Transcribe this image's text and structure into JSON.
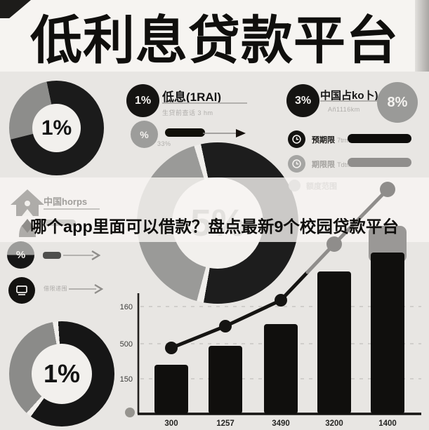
{
  "header": {
    "title": "低利息贷款平台"
  },
  "caption": {
    "text": "哪个app里面可以借款？盘点最新9个校园贷款平台"
  },
  "colors": {
    "ink": "#141414",
    "gray": "#8f8f8d",
    "light_gray": "#c9c7c4",
    "background": "#e8e6e3",
    "panel": "#f6f4f1"
  },
  "donuts": {
    "top_left": {
      "value": "1%"
    },
    "center": {
      "value": "5%"
    },
    "bottom_left": {
      "value": "1%"
    }
  },
  "low_interest": {
    "badge": "1%",
    "title": "低息(1RAl)",
    "subtitle": "生贷前查话 3 hm",
    "percent_badge": "%",
    "bar_note": "33%"
  },
  "china": {
    "badge": "3%",
    "title": "中国占ko卜)",
    "subtitle": "Añ1116km",
    "side_badge": "8%",
    "rows": [
      {
        "icon": "clock-icon",
        "label": "预期限",
        "suffix": "7trm"
      },
      {
        "icon": "clock-icon",
        "label": "期限限",
        "suffix": "Tdtm"
      },
      {
        "icon": "dot-icon",
        "label": "额度范围",
        "suffix": ""
      }
    ]
  },
  "home": {
    "title": "中国horps"
  },
  "mid": {
    "percent_badge": "%",
    "monitor_label": "借限递围"
  },
  "chart_data": {
    "type": "bar",
    "title": "",
    "categories": [
      "300",
      "1257",
      "3490",
      "3200",
      "1400"
    ],
    "series": [
      {
        "name": "bars",
        "values": [
          70,
          97,
          128,
          203,
          268
        ]
      },
      {
        "name": "trend-line",
        "values": [
          94,
          125,
          162,
          242,
          320
        ]
      }
    ],
    "bar_cap": {
      "index": 4,
      "height": 38,
      "color": "#9a9896"
    },
    "yticks": [
      "160",
      "500",
      "150"
    ],
    "xlabel": "",
    "ylabel": "",
    "grid": "dashed-horizontal",
    "legend": "none",
    "line_colors": {
      "solid": "#151412",
      "faded": "#8f8d8b",
      "split_after_point": 2
    }
  }
}
